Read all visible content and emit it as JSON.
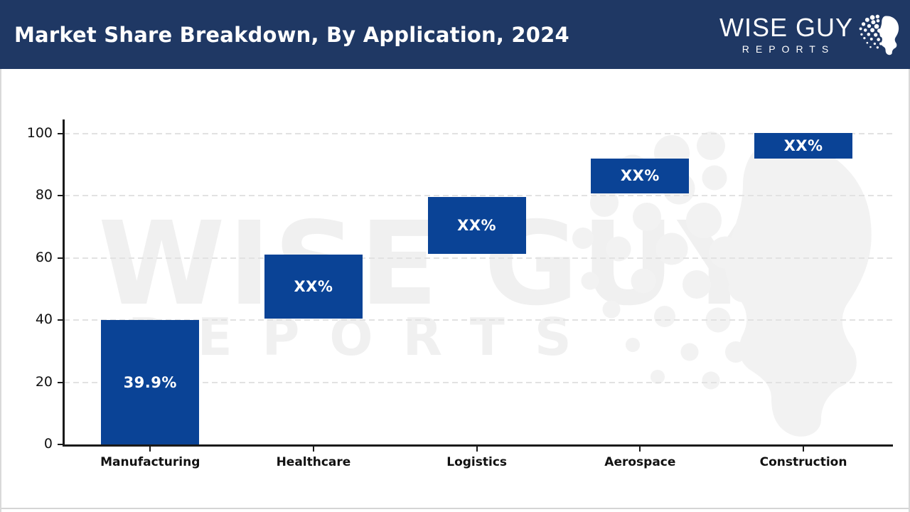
{
  "header": {
    "title": "Market Share Breakdown, By Application, 2024",
    "logo": {
      "name": "WISE GUY",
      "sub": "REPORTS"
    }
  },
  "watermark": {
    "name": "WISE GUY",
    "sub": "REPORTS"
  },
  "colors": {
    "header_bg": "#1f3864",
    "bar": "#0a4396",
    "bar_label": "#ffffff",
    "grid": "#e2e2e2",
    "axis": "#1a1a1a",
    "watermark": "#f2f2f2",
    "frame_line": "#d5d5d5"
  },
  "chart_data": {
    "type": "bar",
    "subtype": "floating-waterfall",
    "title": "Market Share Breakdown, By Application, 2024",
    "categories": [
      "Manufacturing",
      "Healthcare",
      "Logistics",
      "Aerospace",
      "Construction"
    ],
    "bars": [
      {
        "category": "Manufacturing",
        "start": 0,
        "end": 39.9,
        "label": "39.9%"
      },
      {
        "category": "Healthcare",
        "start": 40.4,
        "end": 61.0,
        "label": "XX%"
      },
      {
        "category": "Logistics",
        "start": 61.3,
        "end": 79.5,
        "label": "XX%"
      },
      {
        "category": "Aerospace",
        "start": 80.6,
        "end": 92.0,
        "label": "XX%"
      },
      {
        "category": "Construction",
        "start": 92.0,
        "end": 100.2,
        "label": "XX%"
      }
    ],
    "yticks": [
      0,
      20,
      40,
      60,
      80,
      100
    ],
    "ylim": [
      0,
      104.5
    ],
    "xlabel": "",
    "ylabel": "",
    "grid": "dashed-horizontal",
    "legend": "none"
  }
}
